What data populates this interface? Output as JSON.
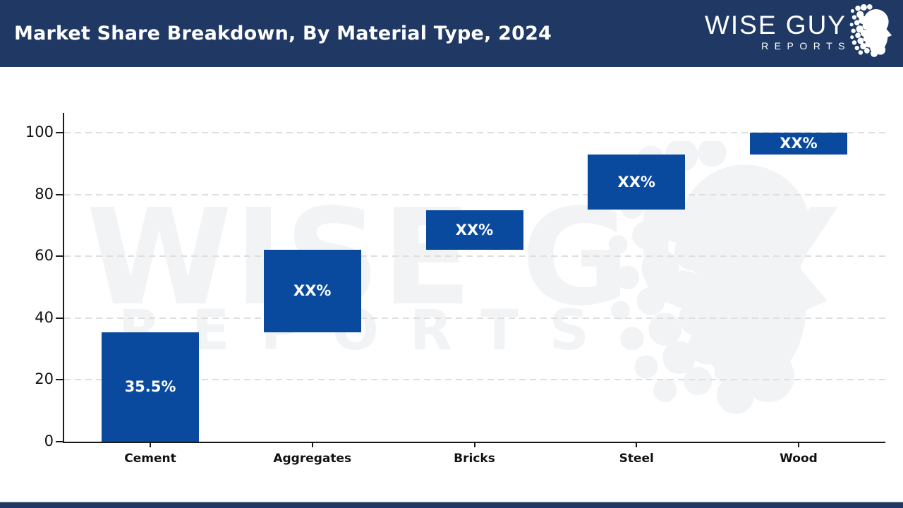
{
  "header": {
    "title": "Market Share Breakdown, By Material Type, 2024",
    "brand": {
      "name": "WISE GUY",
      "sub": "REPORTS"
    }
  },
  "watermark": {
    "line1": "WISE GUY",
    "line2": "REPORTS"
  },
  "colors": {
    "header_bg": "#1f3864",
    "bar_blue": "#0a4a9e",
    "gridline": "#dedede",
    "axis": "#1a1a1a",
    "watermark": "#f2f3f5"
  },
  "chart_data": {
    "type": "bar",
    "subtype": "waterfall",
    "title": "Market Share Breakdown, By Material Type, 2024",
    "categories": [
      "Cement",
      "Aggregates",
      "Bricks",
      "Steel",
      "Wood"
    ],
    "segments": [
      {
        "category": "Cement",
        "start": 0,
        "end": 35.5,
        "label": "35.5%"
      },
      {
        "category": "Aggregates",
        "start": 35.5,
        "end": 62,
        "label": "XX%"
      },
      {
        "category": "Bricks",
        "start": 62,
        "end": 75,
        "label": "XX%"
      },
      {
        "category": "Steel",
        "start": 75,
        "end": 93,
        "label": "XX%"
      },
      {
        "category": "Wood",
        "start": 93,
        "end": 100,
        "label": "XX%"
      }
    ],
    "y_ticks": [
      0,
      20,
      40,
      60,
      80,
      100
    ],
    "ylim": [
      0,
      106
    ],
    "xlabel": "",
    "ylabel": "",
    "grid": "dashed-horizontal",
    "legend": "none",
    "bar_color": "#0a4a9e",
    "value_label_color": "#ffffff"
  }
}
